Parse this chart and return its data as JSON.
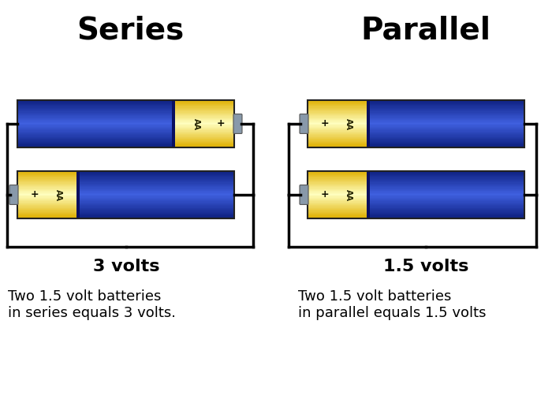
{
  "title_series": "Series",
  "title_parallel": "Parallel",
  "title_fontsize": 28,
  "label_series": "3 volts",
  "label_parallel": "1.5 volts",
  "label_fontsize": 16,
  "desc_series": "Two 1.5 volt batteries\nin series equals 3 volts.",
  "desc_parallel": "Two 1.5 volt batteries\nin parallel equals 1.5 volts",
  "desc_fontsize": 13,
  "battery_blue": "#1a3ab5",
  "battery_yellow": "#f5d000",
  "terminal_color": "#8899aa",
  "wire_color": "#000000",
  "wire_lw": 2.5,
  "bg_color": "#ffffff"
}
